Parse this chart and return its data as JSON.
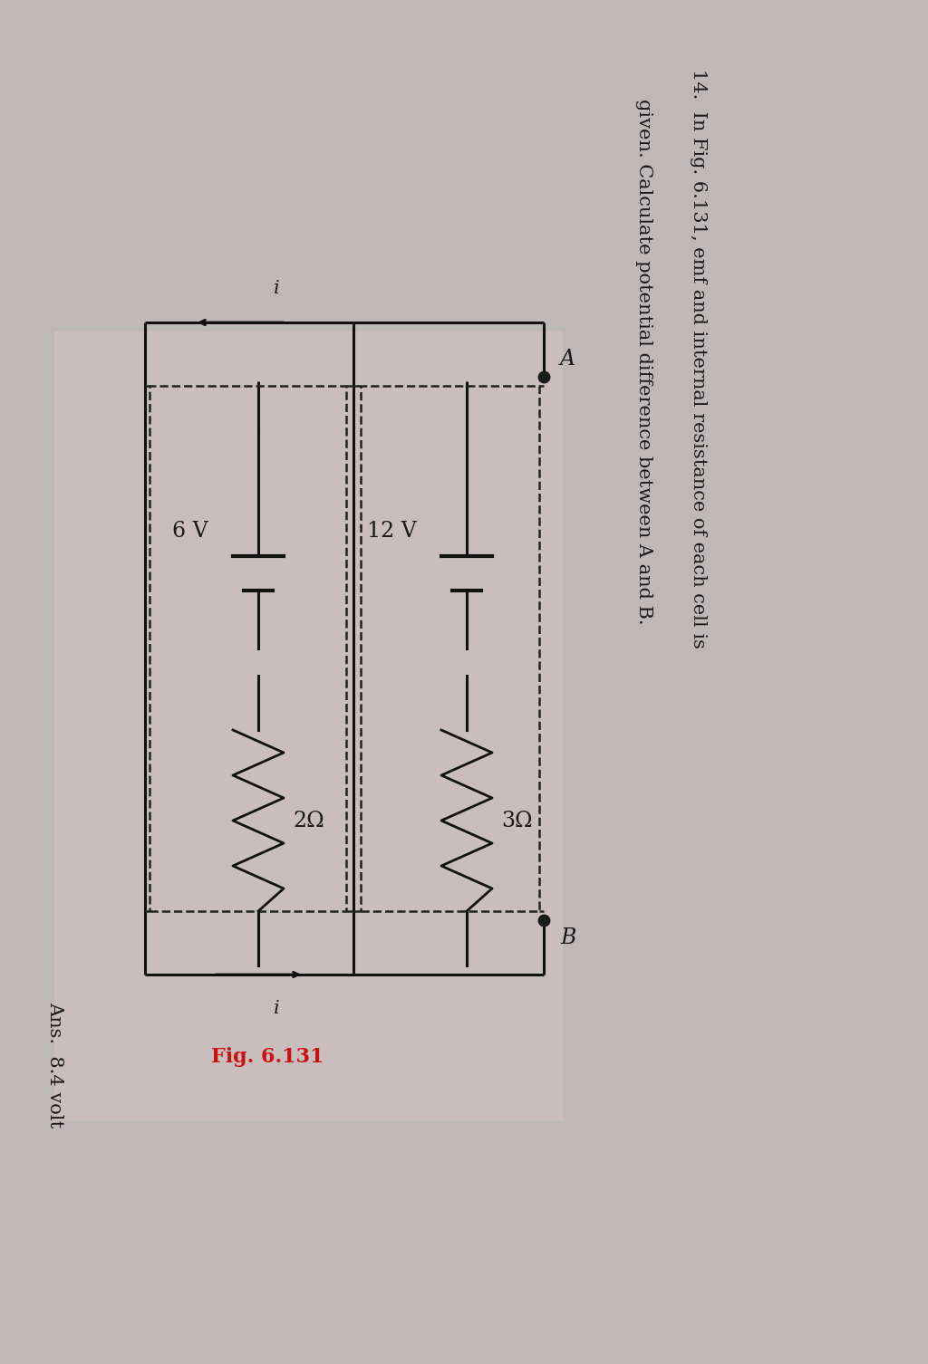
{
  "bg_color": "#bfb8b8",
  "circuit_bg": "#d4c8c8",
  "title_line1": "14.  In Fig. 6.131, emf and internal resistance of each cell is",
  "title_line2": "     given. Calculate potential difference between A and B.",
  "ans_text": "Ans.  8.4 volt",
  "fig_label": "Fig. 6.131",
  "cell1_emf": "12 V",
  "cell1_r": "3Ω",
  "cell2_emf": "6 V",
  "cell2_r": "2Ω",
  "point_A": "A",
  "point_B": "B",
  "current_label": "i",
  "text_color": "#1a1a1a",
  "fig_label_color": "#cc1111",
  "line_color": "#111111",
  "dashed_color": "#222222"
}
